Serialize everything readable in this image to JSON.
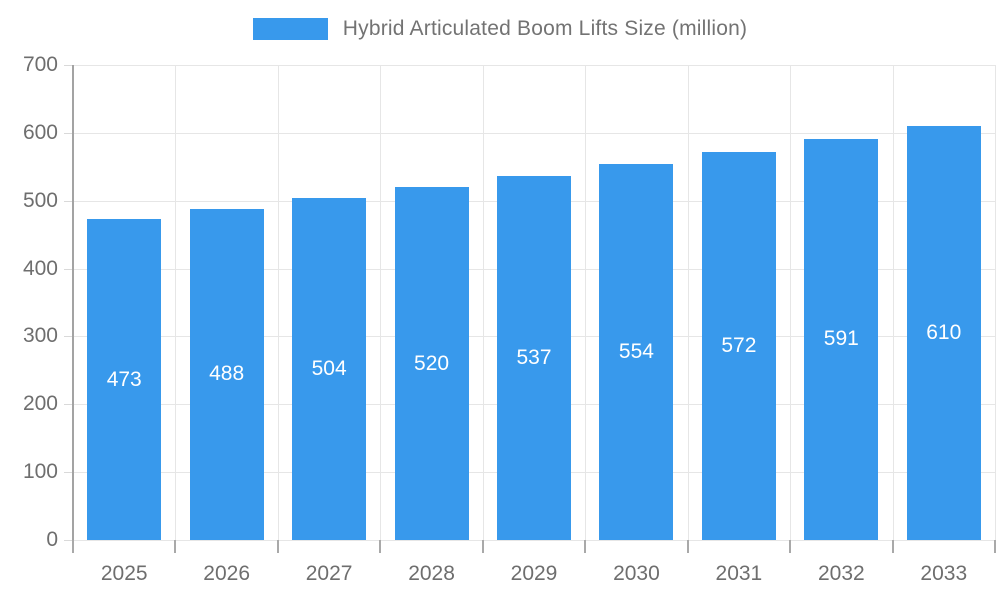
{
  "legend": {
    "label": "Hybrid Articulated Boom Lifts Size (million)",
    "swatch_color": "#3899EC"
  },
  "chart_data": {
    "type": "bar",
    "title": "Hybrid Articulated Boom Lifts Size (million)",
    "categories": [
      "2025",
      "2026",
      "2027",
      "2028",
      "2029",
      "2030",
      "2031",
      "2032",
      "2033"
    ],
    "values": [
      473,
      488,
      504,
      520,
      537,
      554,
      572,
      591,
      610
    ],
    "series": [
      {
        "name": "Hybrid Articulated Boom Lifts Size (million)",
        "values": [
          473,
          488,
          504,
          520,
          537,
          554,
          572,
          591,
          610
        ]
      }
    ],
    "value_labels": [
      "473",
      "488",
      "504",
      "520",
      "537",
      "554",
      "572",
      "591",
      "610"
    ],
    "xlabel": "",
    "ylabel": "",
    "ylim": [
      0,
      700
    ],
    "ytick_step": 100,
    "ytick_labels": [
      "0",
      "100",
      "200",
      "300",
      "400",
      "500",
      "600",
      "700"
    ],
    "grid": true,
    "legend_position": "top",
    "bar_color": "#3899EC",
    "value_label_color": "#ffffff",
    "axis_text_color": "#6e6e6e",
    "gridline_color": "#e6e6e6",
    "axis_line_color": "#a3a3a3"
  }
}
